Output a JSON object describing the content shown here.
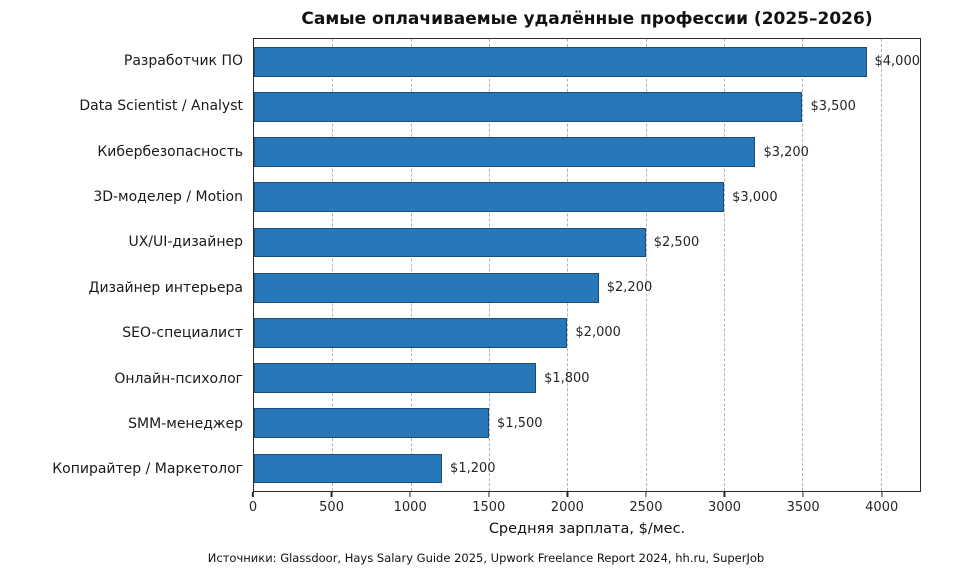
{
  "chart_data": {
    "type": "bar",
    "orientation": "horizontal",
    "title": "Самые оплачиваемые удалённые профессии (2025–2026)",
    "categories": [
      "Разработчик ПО",
      "Data Scientist / Analyst",
      "Кибербезопасность",
      "3D-моделер / Motion",
      "UX/UI-дизайнер",
      "Дизайнер интерьера",
      "SEO-специалист",
      "Онлайн-психолог",
      "SMM-менеджер",
      "Копирайтер / Маркетолог"
    ],
    "values": [
      4000,
      3500,
      3200,
      3000,
      2500,
      2200,
      2000,
      1800,
      1500,
      1200
    ],
    "value_labels": [
      "$4,000",
      "$3,500",
      "$3,200",
      "$3,000",
      "$2,500",
      "$2,200",
      "$2,000",
      "$1,800",
      "$1,500",
      "$1,200"
    ],
    "xlabel": "Средняя зарплата, $/мес.",
    "xticks": [
      0,
      500,
      1000,
      1500,
      2000,
      2500,
      3000,
      3500,
      4000
    ],
    "xlim": [
      0,
      4250
    ],
    "grid": "vertical-dashed",
    "legend": "none",
    "bar_color": "#2878b9",
    "bar_edge_color": "#1b4e74",
    "gridline_color": "#b3b3b3"
  },
  "footer": {
    "source": "Источники: Glassdoor, Hays Salary Guide 2025, Upwork Freelance Report 2024, hh.ru, SuperJob"
  }
}
